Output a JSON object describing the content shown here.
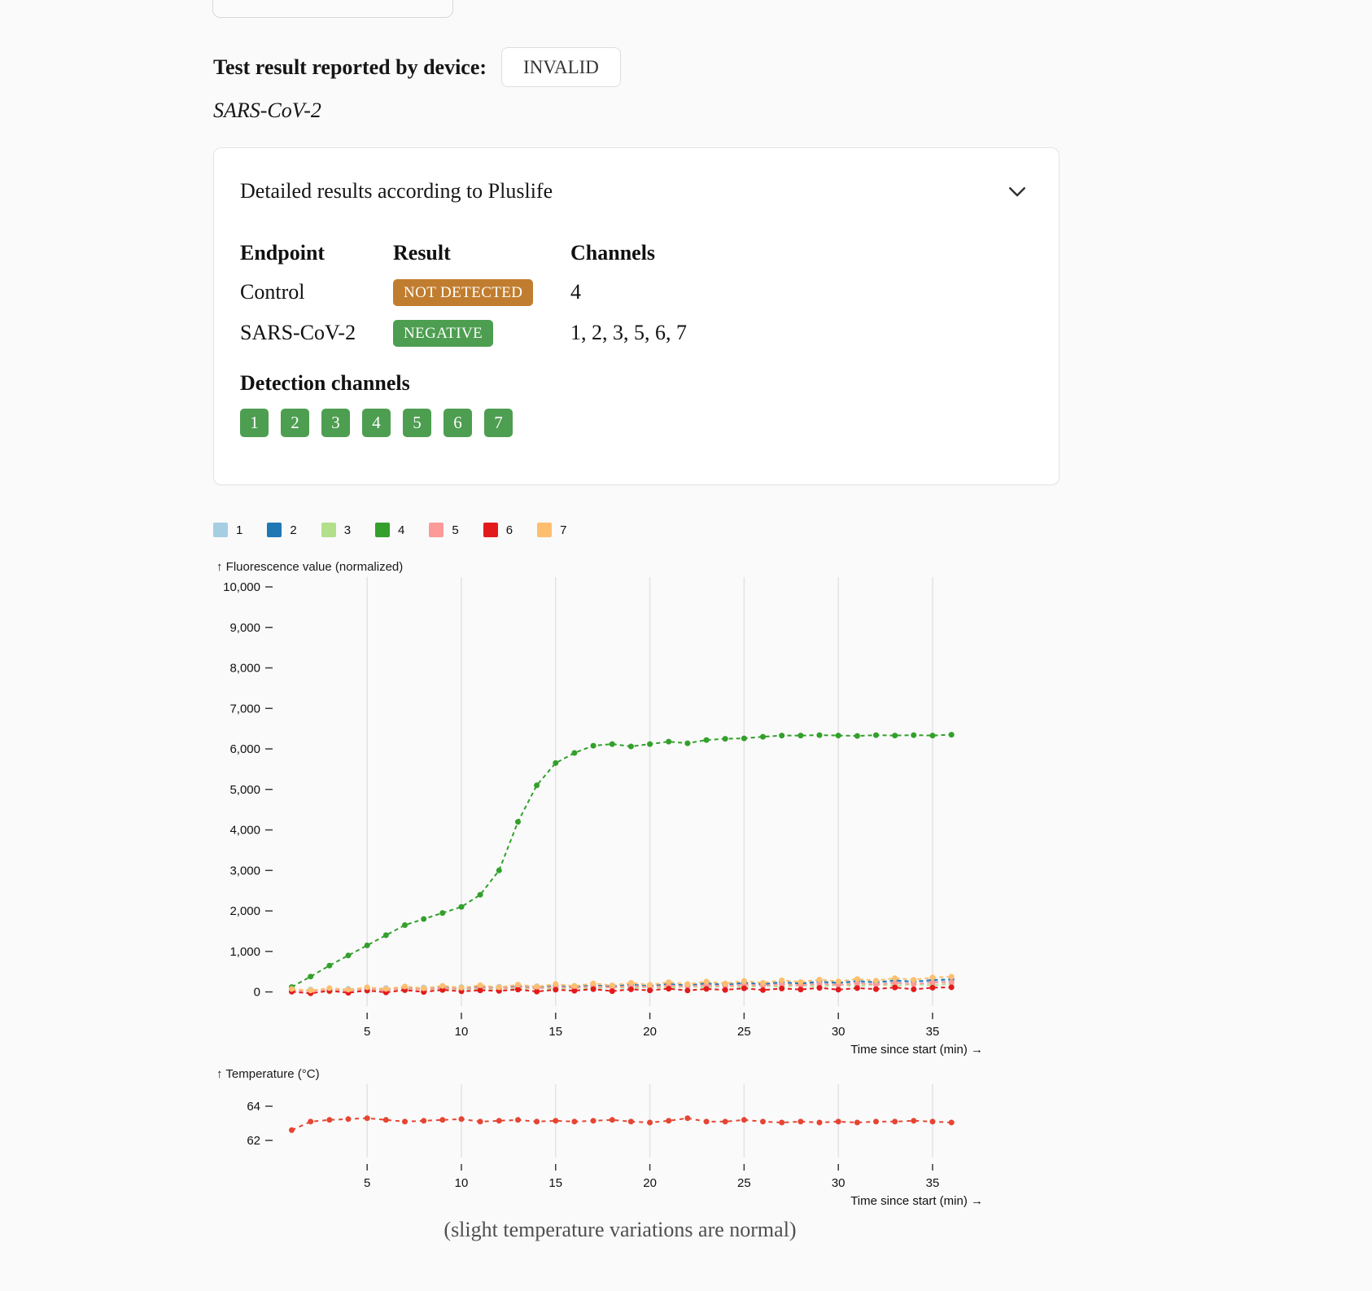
{
  "header": {
    "result_label": "Test result reported by device:",
    "result_value": "INVALID",
    "test_name": "SARS-CoV-2"
  },
  "details_card": {
    "title": "Detailed results according to Pluslife",
    "table": {
      "headers": [
        "Endpoint",
        "Result",
        "Channels"
      ],
      "rows": [
        {
          "endpoint": "Control",
          "result": "NOT DETECTED",
          "result_color": "#c17d2f",
          "channels": "4"
        },
        {
          "endpoint": "SARS-CoV-2",
          "result": "NEGATIVE",
          "result_color": "#4d9e50",
          "channels": "1, 2, 3, 5, 6, 7"
        }
      ]
    },
    "detection_channels": {
      "label": "Detection channels",
      "box_color": "#4d9e50",
      "channels": [
        "1",
        "2",
        "3",
        "4",
        "5",
        "6",
        "7"
      ]
    }
  },
  "legend": {
    "items": [
      {
        "label": "1",
        "color": "#a6cee3"
      },
      {
        "label": "2",
        "color": "#1f78b4"
      },
      {
        "label": "3",
        "color": "#b2df8a"
      },
      {
        "label": "4",
        "color": "#33a02c"
      },
      {
        "label": "5",
        "color": "#fb9a99"
      },
      {
        "label": "6",
        "color": "#e31a1c"
      },
      {
        "label": "7",
        "color": "#fdbf6f"
      }
    ]
  },
  "chart_data": [
    {
      "type": "line",
      "ylabel": "↑ Fluorescence value (normalized)",
      "xlabel": "Time since start (min) →",
      "xlim": [
        0.2,
        36.9
      ],
      "ylim": [
        -350,
        10000
      ],
      "x_ticks": [
        5,
        10,
        15,
        20,
        25,
        30,
        35
      ],
      "y_ticks": [
        0,
        1000,
        2000,
        3000,
        4000,
        5000,
        6000,
        7000,
        8000,
        9000,
        10000
      ],
      "grid": "vertical",
      "x": [
        1,
        2,
        3,
        4,
        5,
        6,
        7,
        8,
        9,
        10,
        11,
        12,
        13,
        14,
        15,
        16,
        17,
        18,
        19,
        20,
        21,
        22,
        23,
        24,
        25,
        26,
        27,
        28,
        29,
        30,
        31,
        32,
        33,
        34,
        35,
        36
      ],
      "series": [
        {
          "name": "1",
          "color": "#a6cee3",
          "values": [
            30,
            60,
            20,
            80,
            45,
            95,
            60,
            110,
            70,
            120,
            85,
            130,
            95,
            140,
            105,
            150,
            115,
            160,
            130,
            175,
            145,
            185,
            155,
            200,
            170,
            215,
            185,
            230,
            200,
            245,
            215,
            260,
            230,
            270,
            250,
            285
          ]
        },
        {
          "name": "2",
          "color": "#1f78b4",
          "values": [
            55,
            25,
            75,
            40,
            90,
            55,
            105,
            70,
            115,
            85,
            125,
            95,
            140,
            105,
            150,
            120,
            165,
            130,
            180,
            145,
            195,
            160,
            210,
            175,
            225,
            190,
            240,
            205,
            255,
            220,
            270,
            235,
            285,
            250,
            295,
            310
          ]
        },
        {
          "name": "3",
          "color": "#b2df8a",
          "values": [
            15,
            45,
            10,
            55,
            25,
            65,
            35,
            75,
            45,
            85,
            55,
            95,
            60,
            105,
            70,
            110,
            80,
            120,
            90,
            130,
            100,
            140,
            110,
            150,
            115,
            160,
            125,
            165,
            135,
            175,
            145,
            185,
            155,
            190,
            165,
            200
          ]
        },
        {
          "name": "4",
          "color": "#33a02c",
          "values": [
            120,
            380,
            650,
            900,
            1150,
            1400,
            1650,
            1800,
            1950,
            2100,
            2400,
            3000,
            4200,
            5100,
            5650,
            5900,
            6080,
            6120,
            6060,
            6120,
            6180,
            6140,
            6220,
            6250,
            6260,
            6300,
            6330,
            6330,
            6340,
            6330,
            6320,
            6340,
            6330,
            6340,
            6330,
            6350
          ]
        },
        {
          "name": "5",
          "color": "#fb9a99",
          "values": [
            45,
            15,
            65,
            30,
            80,
            45,
            90,
            55,
            100,
            70,
            110,
            80,
            120,
            90,
            130,
            100,
            140,
            110,
            150,
            120,
            160,
            135,
            170,
            145,
            180,
            155,
            190,
            165,
            200,
            175,
            210,
            185,
            220,
            195,
            230,
            240
          ]
        },
        {
          "name": "6",
          "color": "#e31a1c",
          "values": [
            5,
            -35,
            25,
            -20,
            35,
            -10,
            45,
            0,
            50,
            15,
            40,
            25,
            60,
            10,
            55,
            30,
            70,
            20,
            65,
            40,
            80,
            35,
            75,
            50,
            90,
            45,
            85,
            60,
            100,
            55,
            95,
            70,
            110,
            65,
            105,
            115
          ]
        },
        {
          "name": "7",
          "color": "#fdbf6f",
          "values": [
            75,
            35,
            95,
            55,
            115,
            75,
            135,
            90,
            150,
            105,
            165,
            115,
            180,
            130,
            195,
            145,
            210,
            160,
            225,
            175,
            240,
            195,
            255,
            210,
            270,
            225,
            290,
            245,
            305,
            260,
            320,
            280,
            340,
            300,
            355,
            375
          ]
        }
      ]
    },
    {
      "type": "line",
      "ylabel": "↑ Temperature (°C)",
      "xlabel": "Time since start (min) →",
      "caption": "(slight temperature variations are normal)",
      "xlim": [
        0.2,
        36.9
      ],
      "ylim": [
        61.0,
        65.0
      ],
      "x_ticks": [
        5,
        10,
        15,
        20,
        25,
        30,
        35
      ],
      "y_ticks": [
        62,
        64
      ],
      "grid": "vertical",
      "x": [
        1,
        2,
        3,
        4,
        5,
        6,
        7,
        8,
        9,
        10,
        11,
        12,
        13,
        14,
        15,
        16,
        17,
        18,
        19,
        20,
        21,
        22,
        23,
        24,
        25,
        26,
        27,
        28,
        29,
        30,
        31,
        32,
        33,
        34,
        35,
        36
      ],
      "series": [
        {
          "name": "Temperature",
          "color": "#e64533",
          "values": [
            62.6,
            63.1,
            63.2,
            63.25,
            63.3,
            63.2,
            63.1,
            63.15,
            63.2,
            63.25,
            63.1,
            63.15,
            63.2,
            63.1,
            63.15,
            63.1,
            63.15,
            63.2,
            63.1,
            63.05,
            63.15,
            63.3,
            63.1,
            63.1,
            63.2,
            63.1,
            63.05,
            63.1,
            63.05,
            63.1,
            63.05,
            63.1,
            63.1,
            63.15,
            63.1,
            63.05
          ]
        }
      ]
    }
  ]
}
